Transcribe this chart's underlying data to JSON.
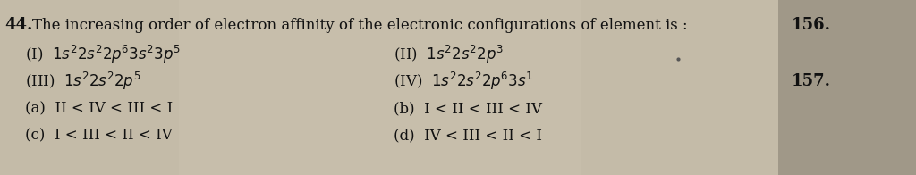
{
  "background_color": "#b8b0a0",
  "left_bg": "#c0b8a8",
  "right_bg": "#a8a090",
  "text_color": "#111111",
  "question_number": "44.",
  "question_text": "The increasing order of electron affinity of the electronic configurations of element is :",
  "side_number": "156.",
  "side_number2": "157.",
  "row1_left_label": "(I)",
  "row1_left_formula": "$1s^22s^22p^63s^23p^5$",
  "row1_right_label": "(II)",
  "row1_right_formula": "$1s^22s^22p^3$",
  "row2_left_label": "(III)",
  "row2_left_formula": "$1s^22s^22p^5$",
  "row2_right_label": "(IV)",
  "row2_right_formula": "$1s^22s^22p^63s^1$",
  "opt_a_label": "(a)",
  "opt_a_text": "II < IV < III < I",
  "opt_b_label": "(b)",
  "opt_b_text": "I < II < III < IV",
  "opt_c_label": "(c)",
  "opt_c_text": "I < III < II < IV",
  "opt_d_label": "(d)",
  "opt_d_text": "IV < III < II < I",
  "fontsize_main": 12,
  "fontsize_qnum": 13
}
